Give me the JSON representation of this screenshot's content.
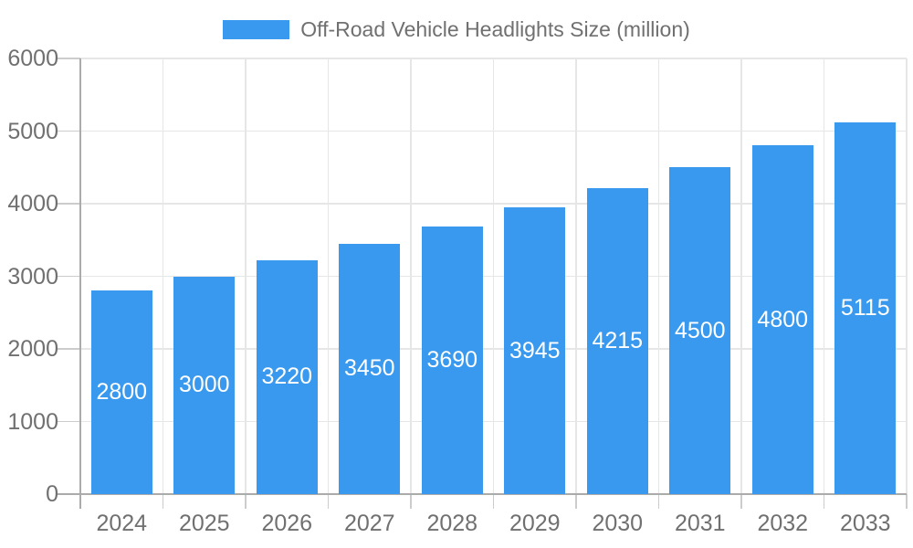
{
  "legend": {
    "label": "Off-Road Vehicle Headlights Size (million)"
  },
  "colors": {
    "bar": "#3999ee",
    "bar_label": "#ffffff",
    "axis_text": "#707070",
    "legend_text": "#707070",
    "axis_line": "#ababab",
    "tick": "#cccccc",
    "grid": "#e6e6e6",
    "background": "#ffffff"
  },
  "chart_data": {
    "type": "bar",
    "title": "",
    "xlabel": "",
    "ylabel": "",
    "categories": [
      "2024",
      "2025",
      "2026",
      "2027",
      "2028",
      "2029",
      "2030",
      "2031",
      "2032",
      "2033"
    ],
    "series": [
      {
        "name": "Off-Road Vehicle Headlights Size (million)",
        "values": [
          2800,
          3000,
          3220,
          3450,
          3690,
          3945,
          4215,
          4500,
          4800,
          5115
        ]
      }
    ],
    "bar_labels": [
      "2800",
      "3000",
      "3220",
      "3450",
      "3690",
      "3945",
      "4215",
      "4500",
      "4800",
      "5115"
    ],
    "bar_label_position": "inside-center",
    "ylim": [
      0,
      6000
    ],
    "yticks": [
      0,
      1000,
      2000,
      3000,
      4000,
      5000,
      6000
    ],
    "ytick_labels": [
      "0",
      "1000",
      "2000",
      "3000",
      "4000",
      "5000",
      "6000"
    ],
    "grid": true,
    "legend_position": "top-center"
  }
}
